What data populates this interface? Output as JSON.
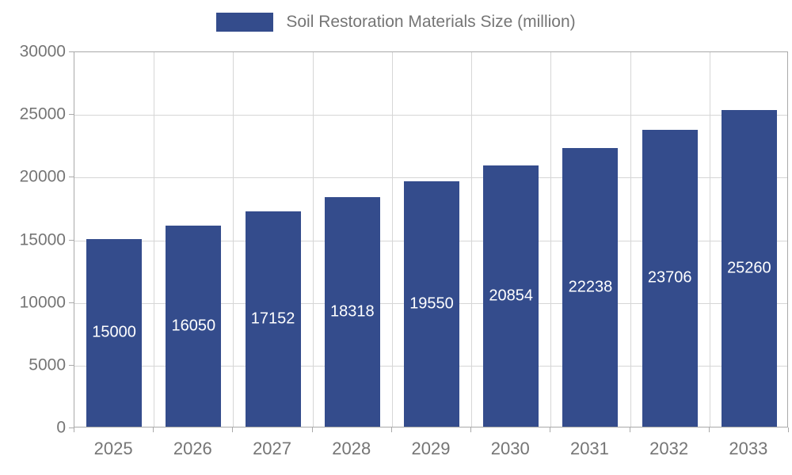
{
  "legend": {
    "label": "Soil Restoration Materials Size (million)"
  },
  "chart_data": {
    "type": "bar",
    "title": "Soil Restoration Materials Size (million)",
    "categories": [
      "2025",
      "2026",
      "2027",
      "2028",
      "2029",
      "2030",
      "2031",
      "2032",
      "2033"
    ],
    "values": [
      15000,
      16050,
      17152,
      18318,
      19550,
      20854,
      22238,
      23706,
      25260
    ],
    "xlabel": "",
    "ylabel": "",
    "ylim": [
      0,
      30000
    ],
    "yticks": [
      0,
      5000,
      10000,
      15000,
      20000,
      25000,
      30000
    ],
    "grid": true,
    "legend_position": "top-center",
    "bar_color": "#344C8C",
    "value_label_color": "#ffffff",
    "axis_text_color": "#757575",
    "gridline_color": "#d6d6d6",
    "plot_border_color": "#a9a9a9",
    "background_color": "#ffffff"
  }
}
